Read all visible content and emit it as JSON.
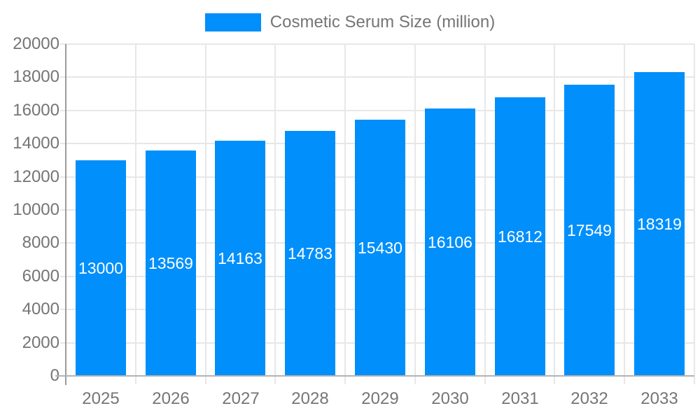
{
  "legend": {
    "label": "Cosmetic Serum Size (million)",
    "swatch_color": "#008ffb"
  },
  "chart_data": {
    "type": "bar",
    "title": "Cosmetic Serum Size (million)",
    "series": [
      {
        "name": "Cosmetic Serum Size (million)",
        "values": [
          13000,
          13569,
          14163,
          14783,
          15430,
          16106,
          16812,
          17549,
          18319
        ]
      }
    ],
    "categories": [
      "2025",
      "2026",
      "2027",
      "2028",
      "2029",
      "2030",
      "2031",
      "2032",
      "2033"
    ],
    "xlabel": "",
    "ylabel": "",
    "ylim": [
      0,
      20000
    ],
    "ytick_step": 2000,
    "ytick_labels": [
      "0",
      "2000",
      "4000",
      "6000",
      "8000",
      "10000",
      "12000",
      "14000",
      "16000",
      "18000",
      "20000"
    ],
    "grid": true,
    "legend_position": "top",
    "data_labels": "inside-center",
    "colors": {
      "bar": "#008ffb",
      "bar_label_text": "#ffffff",
      "grid_line": "#e7e7e7",
      "axis_line": "#9b9b9b",
      "baseline": "#b3b3b3",
      "axis_text": "#757575"
    }
  }
}
